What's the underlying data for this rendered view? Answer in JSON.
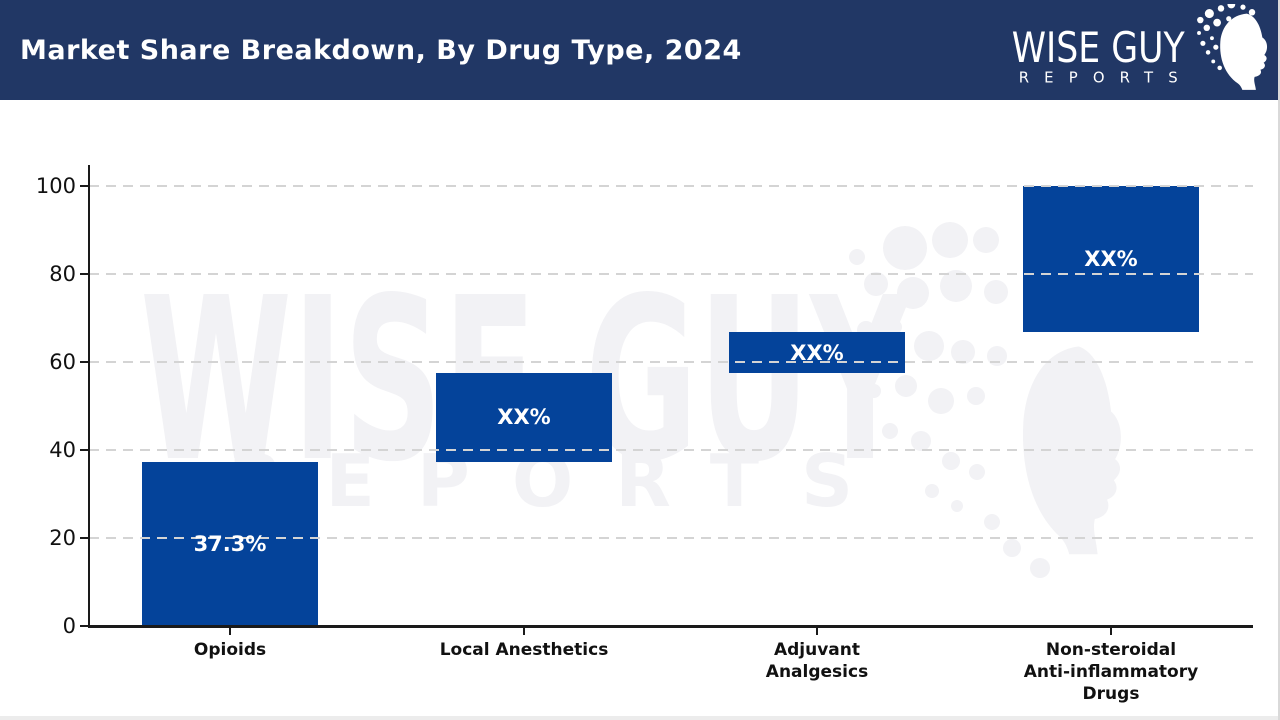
{
  "header": {
    "title": "Market Share Breakdown, By Drug Type, 2024",
    "logo": {
      "brand_line1": "WISE GUY",
      "brand_line2": "REPORTS"
    }
  },
  "watermark": {
    "line1": "WISE GUY",
    "line2": "REPORTS"
  },
  "chart_data": {
    "type": "bar",
    "subtype": "waterfall",
    "title": "Market Share Breakdown, By Drug Type, 2024",
    "categories": [
      "Opioids",
      "Local Anesthetics",
      "Adjuvant\nAnalgesics",
      "Non-steroidal\nAnti-inflammatory\nDrugs"
    ],
    "segments": [
      {
        "category": "Opioids",
        "label": "37.3%",
        "start": 0,
        "end": 37.3,
        "value": 37.3
      },
      {
        "category": "Local Anesthetics",
        "label": "XX%",
        "start": 37.3,
        "end": 57.5,
        "value": 20.2
      },
      {
        "category": "Adjuvant Analgesics",
        "label": "XX%",
        "start": 57.5,
        "end": 66.8,
        "value": 9.3
      },
      {
        "category": "Non-steroidal Anti-inflammatory Drugs",
        "label": "XX%",
        "start": 66.8,
        "end": 100,
        "value": 33.2
      }
    ],
    "yticks": [
      0,
      20,
      40,
      60,
      80,
      100
    ],
    "ylim": [
      0,
      105
    ],
    "xlabel": "",
    "ylabel": "",
    "legend": "none",
    "grid": true,
    "grid_style": "dashed",
    "bar_color": "#04439a"
  },
  "colors": {
    "header_bg": "#213765",
    "bar": "#04439a",
    "grid": "#d4d4d4",
    "axis": "#1a1a1a",
    "watermark": "#f2f2f5",
    "bar_label": "#ffffff"
  }
}
